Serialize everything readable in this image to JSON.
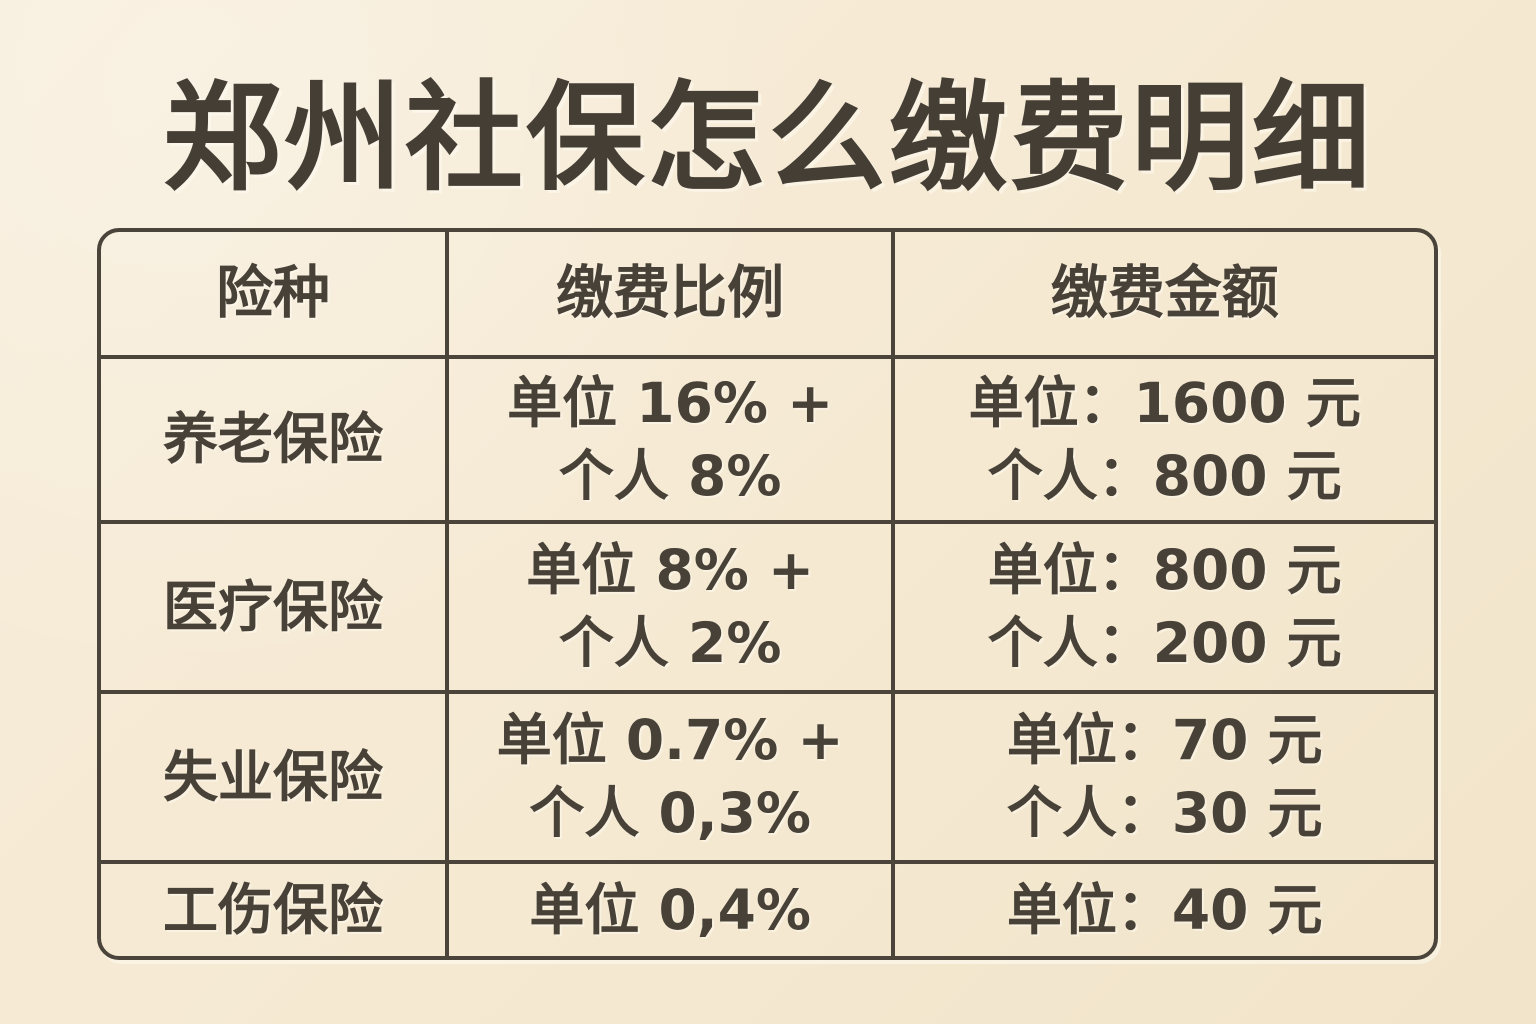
{
  "title": "郑州社保怎么缴费明细",
  "colors": {
    "background": "#f5e9d2",
    "ink": "#484138",
    "border": "#4a443b"
  },
  "table": {
    "headers": {
      "type": "险种",
      "ratio": "缴费比例",
      "amount": "缴费金额"
    },
    "rows": [
      {
        "type": "养老保险",
        "ratio": [
          "单位 16% +",
          "个人 8%"
        ],
        "amount": [
          "单位：1600 元",
          "个人：800 元"
        ]
      },
      {
        "type": "医疗保险",
        "ratio": [
          "单位 8% +",
          "个人 2%"
        ],
        "amount": [
          "单位：800 元",
          "个人：200 元"
        ]
      },
      {
        "type": "失业保险",
        "ratio": [
          "单位 0.7% +",
          "个人 0,3%"
        ],
        "amount": [
          "单位：70 元",
          "个人：30 元"
        ]
      },
      {
        "type": "工伤保险",
        "ratio": [
          "单位 0,4%"
        ],
        "amount": [
          "单位：40 元"
        ]
      }
    ]
  },
  "chart_data": {
    "type": "table",
    "title": "郑州社保怎么缴费明细",
    "columns": [
      "险种",
      "缴费比例",
      "缴费金额"
    ],
    "rows": [
      [
        "养老保险",
        "单位 16% + 个人 8%",
        "单位：1600 元 / 个人：800 元"
      ],
      [
        "医疗保险",
        "单位 8% + 个人 2%",
        "单位：800 元 / 个人：200 元"
      ],
      [
        "失业保险",
        "单位 0.7% + 个人 0,3%",
        "单位：70 元 / 个人：30 元"
      ],
      [
        "工伤保险",
        "单位 0,4%",
        "单位：40 元"
      ]
    ]
  }
}
